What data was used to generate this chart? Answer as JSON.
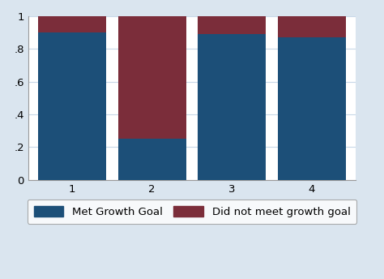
{
  "categories": [
    "1",
    "2",
    "3",
    "4"
  ],
  "met_goal": [
    0.9,
    0.25,
    0.89,
    0.87
  ],
  "not_met_goal": [
    0.1,
    0.75,
    0.11,
    0.13
  ],
  "color_met": "#1C4F78",
  "color_not_met": "#7B2D3A",
  "ylim": [
    0,
    1.0
  ],
  "yticks": [
    0,
    0.2,
    0.4,
    0.6,
    0.8,
    1.0
  ],
  "ytick_labels": [
    "0",
    ".2",
    ".4",
    ".6",
    ".8",
    "1"
  ],
  "legend_met": "Met Growth Goal",
  "legend_not_met": "Did not meet growth goal",
  "bar_width": 0.85,
  "background_color": "#DAE5EF",
  "plot_bg_color": "#FFFFFF",
  "grid_color": "#C8D8E8",
  "font_size": 9.5
}
